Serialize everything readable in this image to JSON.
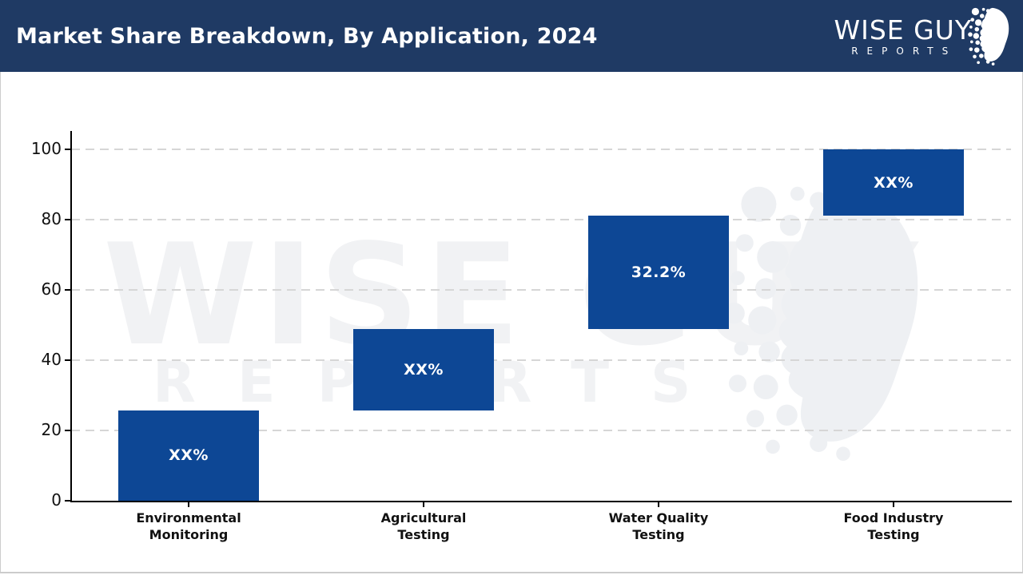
{
  "header": {
    "title": "Market Share Breakdown, By Application, 2024",
    "bg_color": "#1f3a64",
    "logo": {
      "brand": "WISE GUY",
      "subtitle": "REPORTS"
    }
  },
  "watermark": {
    "brand": "WISE GUY",
    "subtitle": "REPORTS"
  },
  "chart_data": {
    "type": "bar",
    "subtype": "waterfall",
    "title": "Market Share Breakdown, By Application, 2024",
    "categories": [
      [
        "Environmental",
        "Monitoring"
      ],
      [
        "Agricultural",
        "Testing"
      ],
      [
        "Water Quality",
        "Testing"
      ],
      [
        "Food Industry",
        "Testing"
      ]
    ],
    "segments": [
      {
        "category": "Environmental Monitoring",
        "start": 0,
        "end": 25.7,
        "label": "XX%"
      },
      {
        "category": "Agricultural Testing",
        "start": 25.7,
        "end": 48.9,
        "label": "XX%"
      },
      {
        "category": "Water Quality Testing",
        "start": 48.9,
        "end": 81.1,
        "label": "32.2%"
      },
      {
        "category": "Food Industry Testing",
        "start": 81.1,
        "end": 100,
        "label": "XX%"
      }
    ],
    "ylim": [
      0,
      100
    ],
    "yticks": [
      0,
      20,
      40,
      60,
      80,
      100
    ],
    "bar_color": "#0d4795",
    "grid": true,
    "grid_style": "dashed",
    "grid_color": "#d6d6d6",
    "legend": false
  }
}
